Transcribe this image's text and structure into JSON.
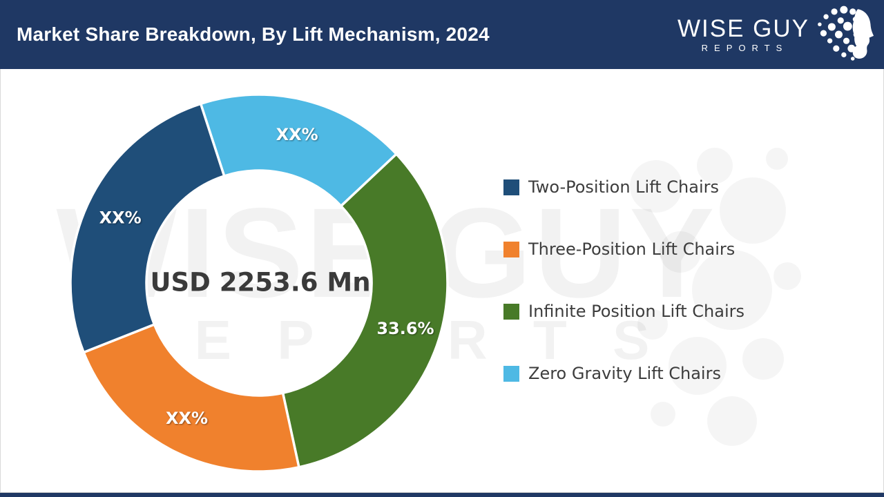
{
  "header": {
    "title": "Market Share Breakdown, By Lift Mechanism, 2024",
    "logo": {
      "line1": "WISE GUY",
      "line2": "REPORTS"
    }
  },
  "colors": {
    "header_bg": "#1F3864",
    "footer_bg": "#1F3864",
    "canvas_bg": "#FFFFFF",
    "two_position": "#1F4E79",
    "three_position": "#F0812D",
    "infinite_position": "#487A28",
    "zero_gravity": "#4EB9E4"
  },
  "chart_data": {
    "type": "pie",
    "subtype": "donut",
    "center_label": "USD 2253.6 Mn",
    "start_angle_deg": -18,
    "units": "percent_share",
    "series": [
      {
        "name": "Zero Gravity Lift Chairs",
        "value": 18.0,
        "display_label": "XX%",
        "color": "#4EB9E4"
      },
      {
        "name": "Infinite Position Lift Chairs",
        "value": 33.6,
        "display_label": "33.6%",
        "color": "#487A28"
      },
      {
        "name": "Three-Position Lift Chairs",
        "value": 22.4,
        "display_label": "XX%",
        "color": "#F0812D"
      },
      {
        "name": "Two-Position Lift Chairs",
        "value": 26.0,
        "display_label": "XX%",
        "color": "#1F4E79"
      }
    ],
    "legend_position": "right",
    "label_note": "only the Infinite Position slice shows a numeric value (33.6%); other slices are masked as XX%"
  },
  "legend": {
    "items": [
      {
        "label": "Two-Position Lift Chairs",
        "color": "#1F4E79"
      },
      {
        "label": "Three-Position Lift Chairs",
        "color": "#F0812D"
      },
      {
        "label": "Infinite Position Lift Chairs",
        "color": "#487A28"
      },
      {
        "label": "Zero Gravity Lift Chairs",
        "color": "#4EB9E4"
      }
    ]
  },
  "watermark": {
    "line1": "WISE GUY",
    "line2": "R E P O R T S"
  }
}
